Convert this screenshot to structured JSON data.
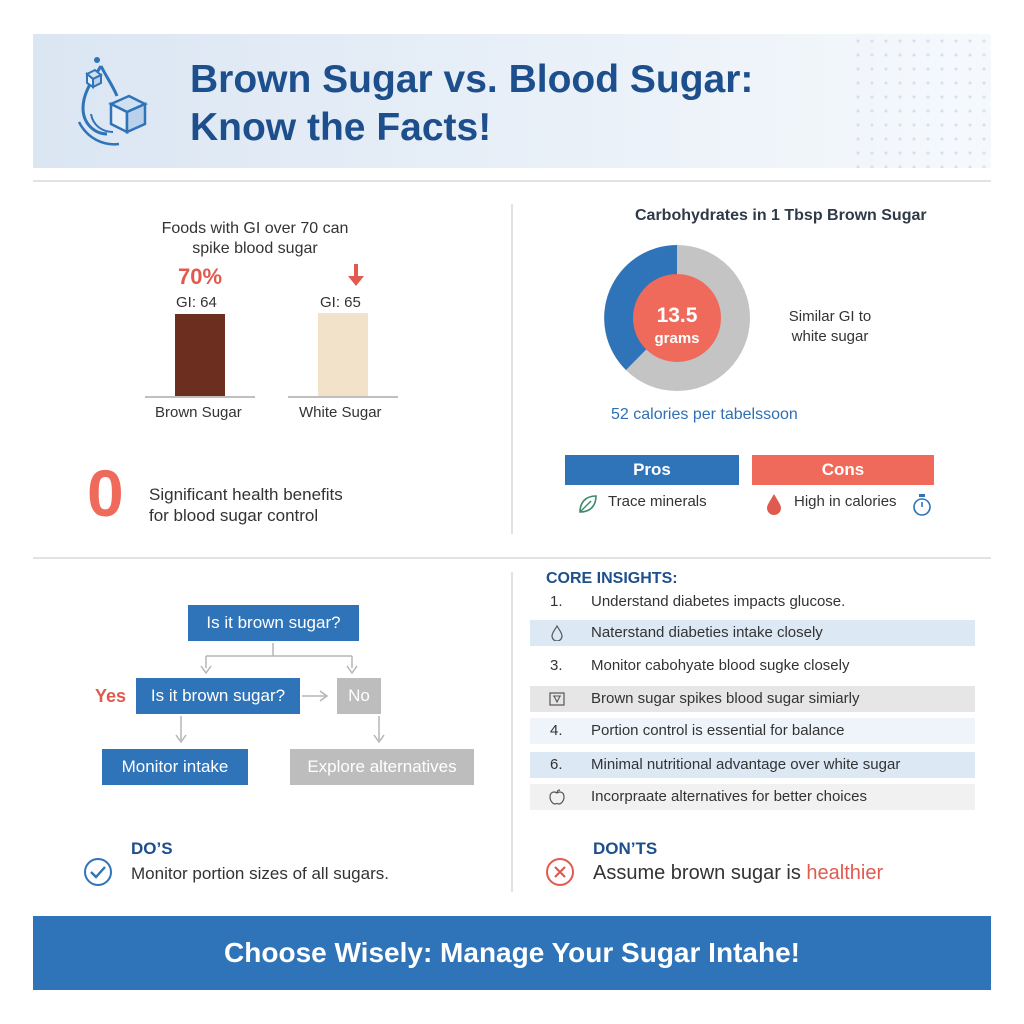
{
  "header": {
    "title_line1": "Brown Sugar vs. Blood Sugar:",
    "title_line2": "Know the Facts!",
    "icon": "sugar-drop-cube-icon"
  },
  "gi_panel": {
    "caption_line1": "Foods with GI over 70 can",
    "caption_line2": "spike blood sugar",
    "percent": "70%",
    "chart_data": {
      "type": "bar",
      "categories": [
        "Brown Sugar",
        "White Sugar"
      ],
      "values": [
        64,
        65
      ],
      "value_labels": [
        "GI: 64",
        "GI: 65"
      ],
      "colors": [
        "#6b2e1f",
        "#f2e2c9"
      ]
    },
    "zero_value": "0",
    "zero_text_line1": "Significant health benefits",
    "zero_text_line2": "for blood sugar control"
  },
  "carb_panel": {
    "title": "Carbohydrates in 1 Tbsp Brown Sugar",
    "center_value": "13.5",
    "center_unit": "grams",
    "side_line1": "Similar GI to",
    "side_line2": "white sugar",
    "calories": "52 calories per tabelssoon",
    "colors": {
      "blue": "#2f73b8",
      "gray": "#c4c4c4",
      "red": "#ef6a5a"
    }
  },
  "pros_cons": {
    "pros_label": "Pros",
    "cons_label": "Cons",
    "pros_item": "Trace minerals",
    "cons_item": "High in calories",
    "pros_icon": "leaf-icon",
    "cons_icons": [
      "blood-drop-icon",
      "stopwatch-icon"
    ]
  },
  "flowchart": {
    "top": "Is it brown sugar?",
    "middle": "Is it brown sugar?",
    "no": "No",
    "yes": "Yes",
    "left_result": "Monitor intake",
    "right_result": "Explore alternatives"
  },
  "insights": {
    "title": "CORE INSIGHTS:",
    "rows": [
      {
        "marker": "1.",
        "text": "Understand diabetes impacts glucose."
      },
      {
        "marker": "",
        "icon": "drop-outline-icon",
        "text": "Naterstand diabeties intake closely"
      },
      {
        "marker": "3.",
        "text": "Monitor cabohyate blood sugke closely"
      },
      {
        "marker": "",
        "icon": "scale-icon",
        "text": "Brown sugar spikes blood sugar simiarly"
      },
      {
        "marker": "4.",
        "text": "Portion control is essential for balance"
      },
      {
        "marker": "6.",
        "text": "Minimal nutritional advantage over white sugar"
      },
      {
        "marker": "",
        "icon": "apple-icon",
        "text": "Incorpraate alternatives for better choices"
      }
    ]
  },
  "dos": {
    "title": "DO’S",
    "text": "Monitor portion sizes of all sugars."
  },
  "donts": {
    "title": "DON’TS",
    "text_before": "Assume brown sugar is ",
    "highlight": "healthier"
  },
  "footer": {
    "text": "Choose Wisely: Manage Your Sugar Intahe!"
  }
}
